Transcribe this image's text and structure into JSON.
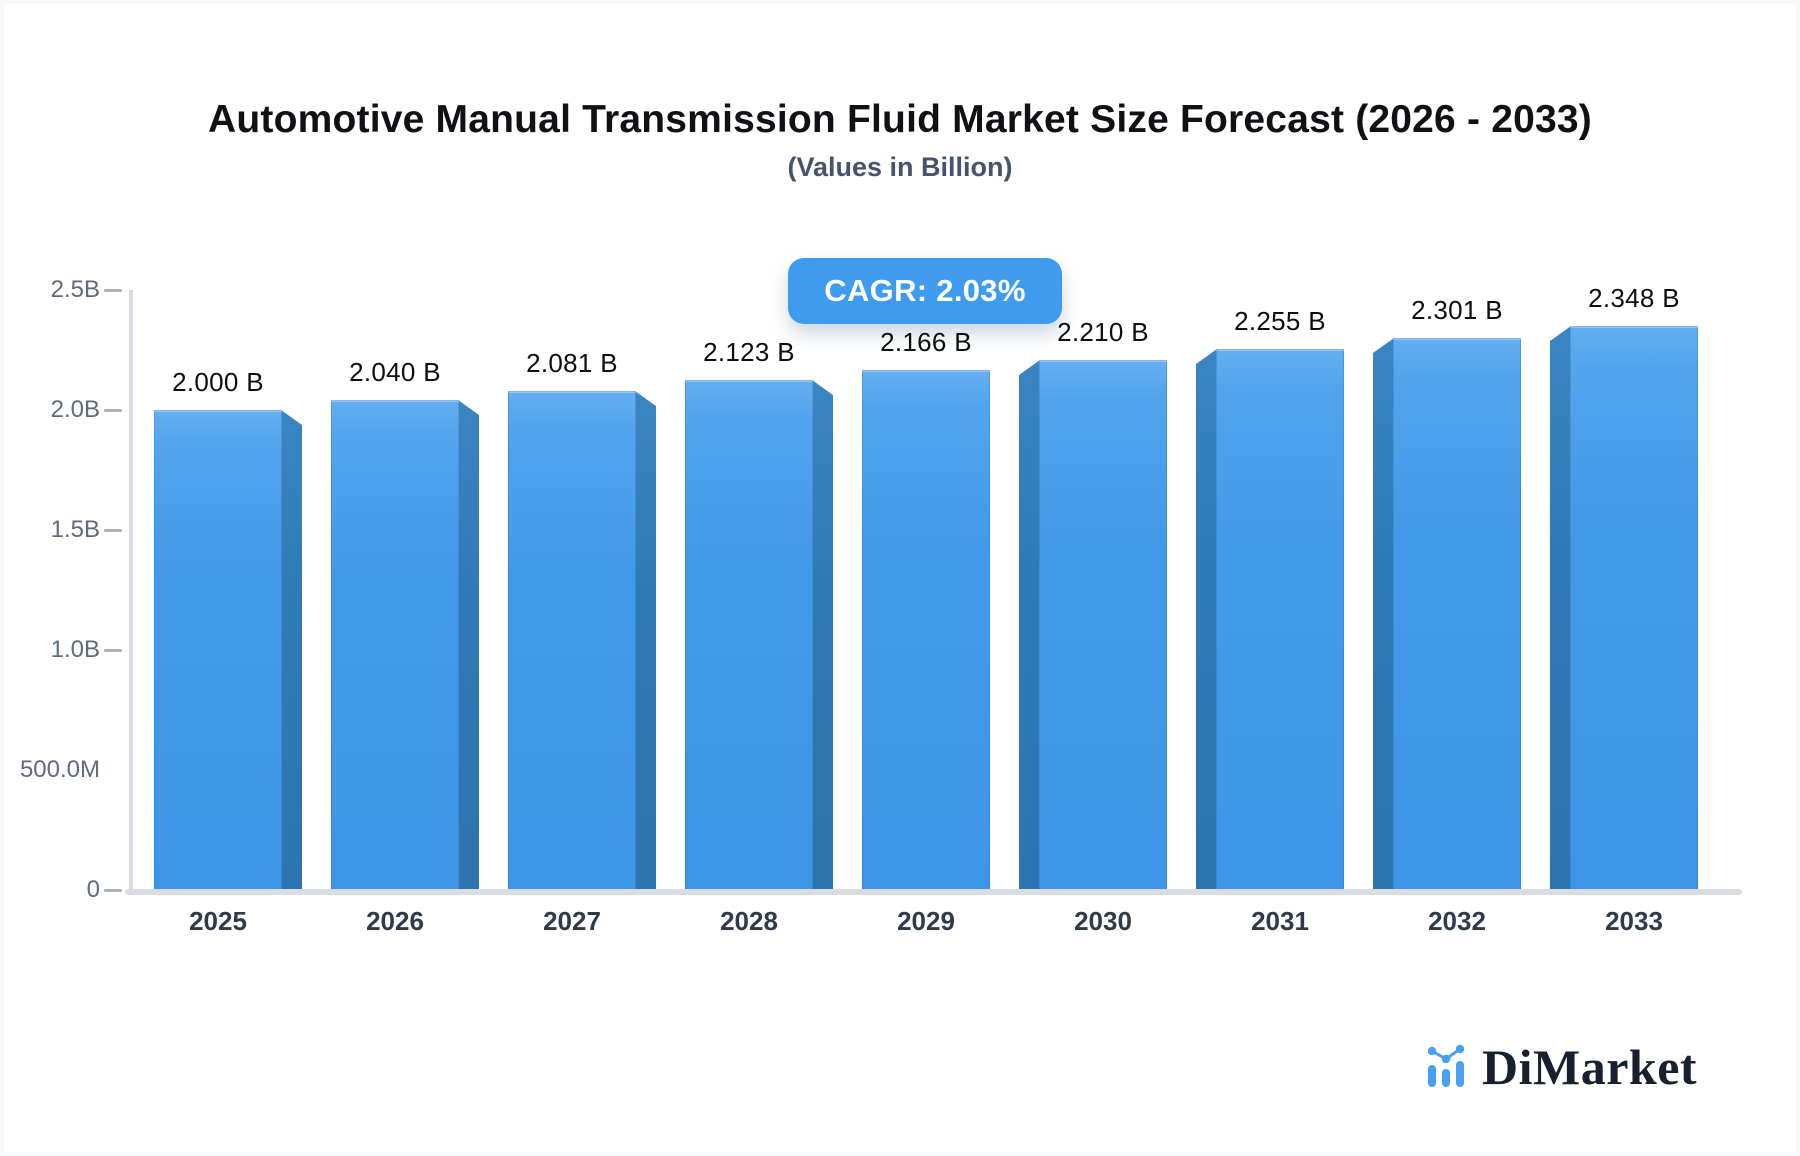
{
  "header": {
    "cagr_badge": "CAGR: 2.03%"
  },
  "chart_data": {
    "type": "bar",
    "title": "Automotive Manual Transmission Fluid Market Size Forecast (2026 - 2033)",
    "subtitle": "(Values in Billion)",
    "categories": [
      "2025",
      "2026",
      "2027",
      "2028",
      "2029",
      "2030",
      "2031",
      "2032",
      "2033"
    ],
    "values": [
      2.0,
      2.04,
      2.081,
      2.123,
      2.166,
      2.21,
      2.255,
      2.301,
      2.348
    ],
    "value_labels": [
      "2.000 B",
      "2.040 B",
      "2.081 B",
      "2.123 B",
      "2.166 B",
      "2.210 B",
      "2.255 B",
      "2.301 B",
      "2.348 B"
    ],
    "ylim": [
      0,
      2.5
    ],
    "grid": false,
    "legend": null,
    "y_ticks": [
      {
        "label": "2.5B",
        "value": 2.5,
        "dash": true
      },
      {
        "label": "2.0B",
        "value": 2.0,
        "dash": true
      },
      {
        "label": "1.5B",
        "value": 1.5,
        "dash": true
      },
      {
        "label": "1.0B",
        "value": 1.0,
        "dash": true
      },
      {
        "label": "500.0M",
        "value": 0.5,
        "dash": false
      },
      {
        "label": "0",
        "value": 0,
        "dash": true
      }
    ],
    "annotation": "CAGR: 2.03%"
  },
  "logo": {
    "text": "DiMarket"
  },
  "colors": {
    "title_text": "#101114",
    "subtitle_text": "#47536a",
    "badge_bg": "#3f9bed",
    "bar_front_top": "#65aef1",
    "bar_front": "#4399e9",
    "bar_side": "#2e7ab6",
    "axis": "#d9dde3",
    "tick_text": "#5d6b7d",
    "year_text": "#2f3a4b",
    "value_text": "#0d0e10",
    "logo_text": "#16202f",
    "logo_icon": "#4aa0f0"
  }
}
